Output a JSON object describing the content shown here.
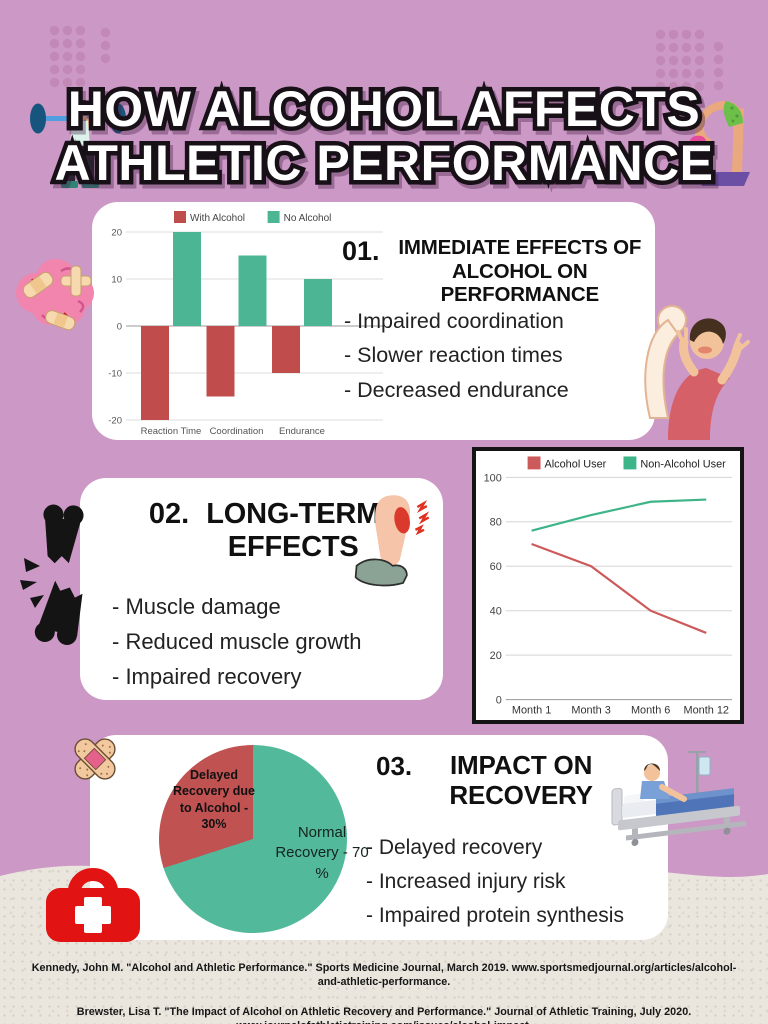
{
  "page": {
    "background_color": "#cc98c6",
    "footer_color": "#eae6de",
    "accent_red": "#c14c4c",
    "accent_teal": "#4cb694"
  },
  "title": {
    "line1": "HOW ALCOHOL AFFECTS",
    "line2": "ATHLETIC PERFORMANCE"
  },
  "sections": [
    {
      "number": "01.",
      "heading": "IMMEDIATE EFFECTS OF ALCOHOL ON PERFORMANCE",
      "bullets": [
        "- Impaired coordination",
        "- Slower reaction times",
        "- Decreased endurance"
      ]
    },
    {
      "number": "02.",
      "heading": "LONG-TERM EFFECTS",
      "bullets": [
        "- Muscle damage",
        "- Reduced muscle growth",
        "- Impaired recovery"
      ]
    },
    {
      "number": "03.",
      "heading": "IMPACT ON RECOVERY",
      "bullets": [
        "- Delayed recovery",
        "- Increased injury risk",
        "- Impaired protein synthesis"
      ]
    }
  ],
  "chart_data": [
    {
      "type": "bar",
      "categories": [
        "Reaction Time",
        "Coordination",
        "Endurance"
      ],
      "series": [
        {
          "name": "With Alcohol",
          "color": "#c14c4c",
          "values": [
            -20,
            -15,
            -10
          ]
        },
        {
          "name": "No Alcohol",
          "color": "#4cb694",
          "values": [
            20,
            15,
            10
          ]
        }
      ],
      "ylim": [
        -20,
        20
      ],
      "yticks": [
        20,
        10,
        0,
        -10,
        -20
      ],
      "legend_position": "top",
      "grid": true
    },
    {
      "type": "line",
      "x": [
        "Month 1",
        "Month 3",
        "Month 6",
        "Month 12"
      ],
      "series": [
        {
          "name": "Alcohol User",
          "color": "#cd5a5a",
          "values": [
            70,
            60,
            40,
            30
          ]
        },
        {
          "name": "Non-Alcohol User",
          "color": "#3eb489",
          "values": [
            76,
            83,
            89,
            90
          ]
        }
      ],
      "ylim": [
        0,
        100
      ],
      "yticks": [
        100,
        80,
        60,
        40,
        20,
        0
      ],
      "legend_position": "top",
      "grid": true
    },
    {
      "type": "pie",
      "slices": [
        {
          "label": "Normal Recovery - 70 %",
          "value": 70,
          "color": "#52b99b"
        },
        {
          "label": "Delayed Recovery due to Alcohol - 30%",
          "value": 30,
          "color": "#c05252"
        }
      ]
    }
  ],
  "citations": [
    "Kennedy, John M. \"Alcohol and Athletic Performance.\" Sports Medicine Journal, March 2019. www.sportsmedjournal.org/articles/alcohol-and-athletic-performance.",
    "Brewster, Lisa T. \"The Impact of Alcohol on Athletic Recovery and Performance.\" Journal of Athletic Training, July 2020. www.journalofathletictraining.com/issues/alcohol-impact."
  ],
  "icons": {
    "decorative": [
      "weightlifter-icon",
      "swimmer-icon",
      "brain-bandage-icon",
      "dizzy-man-icon",
      "broken-bone-icon",
      "injured-leg-icon",
      "crossed-bandage-icon",
      "hospital-bed-icon",
      "first-aid-kit-icon",
      "dot-pattern"
    ]
  }
}
